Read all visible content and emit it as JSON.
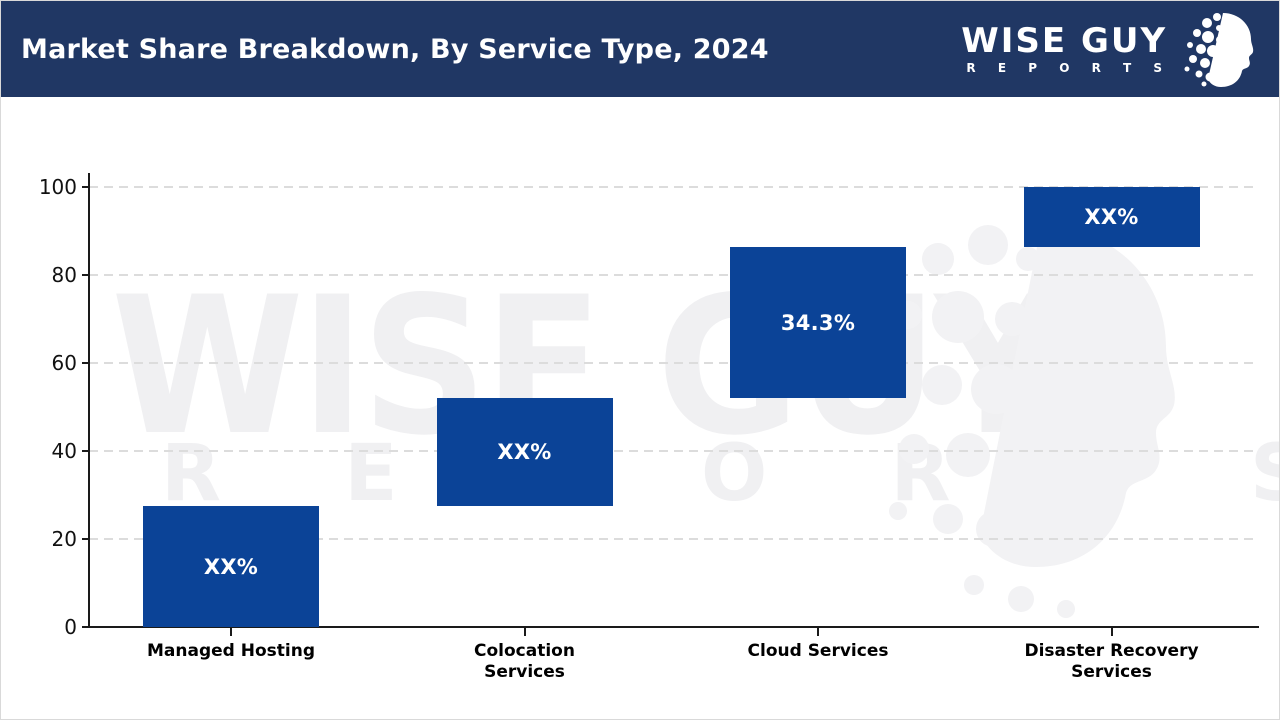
{
  "header": {
    "title": "Market Share Breakdown, By Service Type, 2024",
    "logo": {
      "line1": "WISE GUY",
      "line2": "R E P O R T S"
    }
  },
  "watermark": {
    "line1": "WISE GUY",
    "line2": "R E P O R T S"
  },
  "colors": {
    "header_bg": "#203764",
    "bar": "#0b4397",
    "grid": "#dcdcdc",
    "axis": "#1a1a1a",
    "watermark": "#f0f0f2",
    "label_text": "#ffffff"
  },
  "chart_data": {
    "type": "bar",
    "subtype": "waterfall-floating-bars",
    "title": "Market Share Breakdown, By Service Type, 2024",
    "categories": [
      "Managed Hosting",
      "Colocation\nServices",
      "Cloud Services",
      "Disaster Recovery\nServices"
    ],
    "segments": [
      {
        "category": "Managed Hosting",
        "start": 0,
        "end": 27.5,
        "value": 27.5,
        "label": "XX%"
      },
      {
        "category": "Colocation Services",
        "start": 27.5,
        "end": 52,
        "value": 24.5,
        "label": "XX%"
      },
      {
        "category": "Cloud Services",
        "start": 52,
        "end": 86.3,
        "value": 34.3,
        "label": "34.3%"
      },
      {
        "category": "Disaster Recovery Services",
        "start": 86.3,
        "end": 100,
        "value": 13.7,
        "label": "XX%"
      }
    ],
    "ylim": [
      0,
      100
    ],
    "yticks": [
      0,
      20,
      40,
      60,
      80,
      100
    ],
    "ytick_labels": [
      "0",
      "20",
      "40",
      "60",
      "80",
      "100"
    ],
    "xlabel": "",
    "ylabel": "",
    "grid": "horizontal-dashed",
    "legend": "none"
  }
}
